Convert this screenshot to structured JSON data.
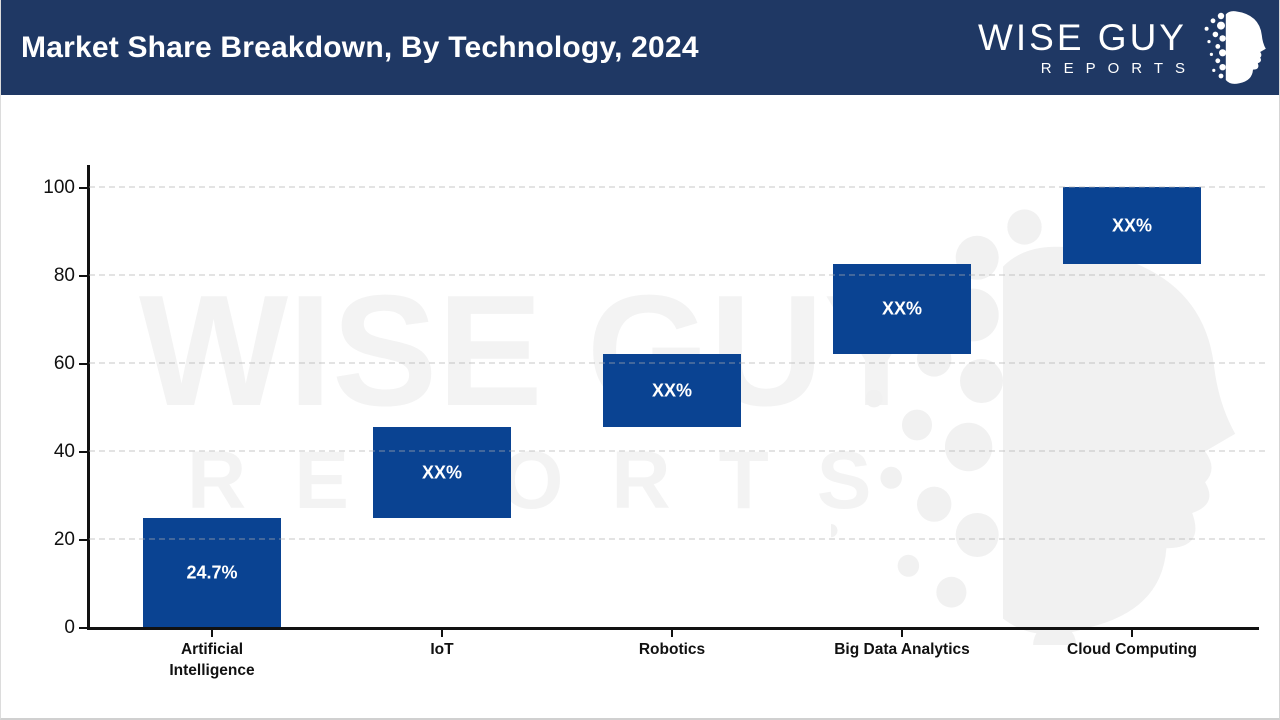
{
  "header": {
    "title": "Market Share Breakdown, By Technology, 2024",
    "logo": {
      "line1": "WISE GUY",
      "line2": "REPORTS"
    }
  },
  "watermark": {
    "line1": "WISE GUY",
    "line2": "REPORTS"
  },
  "colors": {
    "header_bg": "#1f3864",
    "bar": "#0a4392",
    "bar_label_text": "#ffffff",
    "axis": "#111111",
    "gridline": "#e6e6e6",
    "watermark": "#f3f3f3"
  },
  "chart_data": {
    "type": "bar",
    "subtype": "waterfall",
    "title": "Market Share Breakdown, By Technology, 2024",
    "xlabel": "",
    "ylabel": "",
    "ylim": [
      0,
      105
    ],
    "y_ticks": [
      0,
      20,
      40,
      60,
      80,
      100
    ],
    "grid": "horizontal-dashed",
    "legend": "none",
    "categories": [
      "Artificial Intelligence",
      "IoT",
      "Robotics",
      "Big Data Analytics",
      "Cloud Computing"
    ],
    "segments": [
      {
        "category": "Artificial Intelligence",
        "start": 0,
        "end": 24.7,
        "label": "24.7%"
      },
      {
        "category": "IoT",
        "start": 24.7,
        "end": 45.5,
        "label": "XX%"
      },
      {
        "category": "Robotics",
        "start": 45.5,
        "end": 62.0,
        "label": "XX%"
      },
      {
        "category": "Big Data Analytics",
        "start": 62.0,
        "end": 82.6,
        "label": "XX%"
      },
      {
        "category": "Cloud Computing",
        "start": 82.6,
        "end": 99.9,
        "label": "XX%"
      }
    ]
  }
}
